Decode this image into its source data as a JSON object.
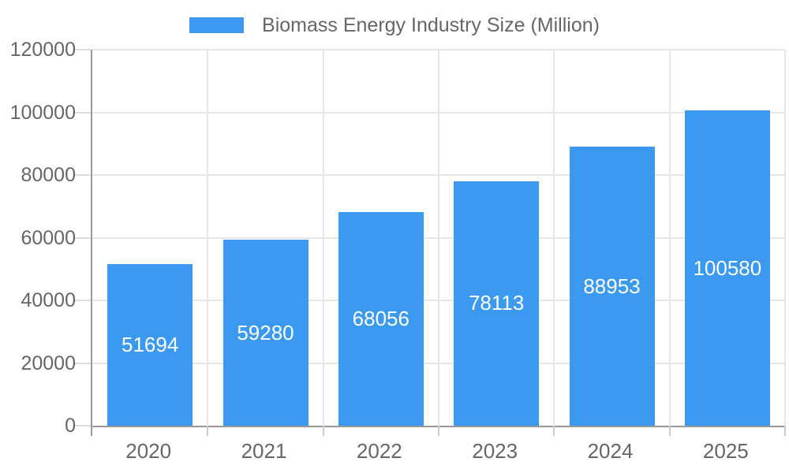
{
  "chart_data": {
    "type": "bar",
    "title": "Biomass Energy Industry Size (Million)",
    "categories": [
      "2020",
      "2021",
      "2022",
      "2023",
      "2024",
      "2025"
    ],
    "values": [
      51694,
      59280,
      68056,
      78113,
      88953,
      100580
    ],
    "value_labels_shown": true,
    "value_label_position": "inside-center",
    "value_label_color": "#ffffff",
    "series_color": "#3b9af0",
    "xlabel": "",
    "ylabel": "",
    "ylim": [
      0,
      120000
    ],
    "yticks": [
      0,
      20000,
      40000,
      60000,
      80000,
      100000,
      120000
    ],
    "grid": "on",
    "grid_color": "#e6e6e6",
    "axis_line_color": "#999999",
    "tick_label_color": "#666666",
    "legend_position": "top-center"
  }
}
